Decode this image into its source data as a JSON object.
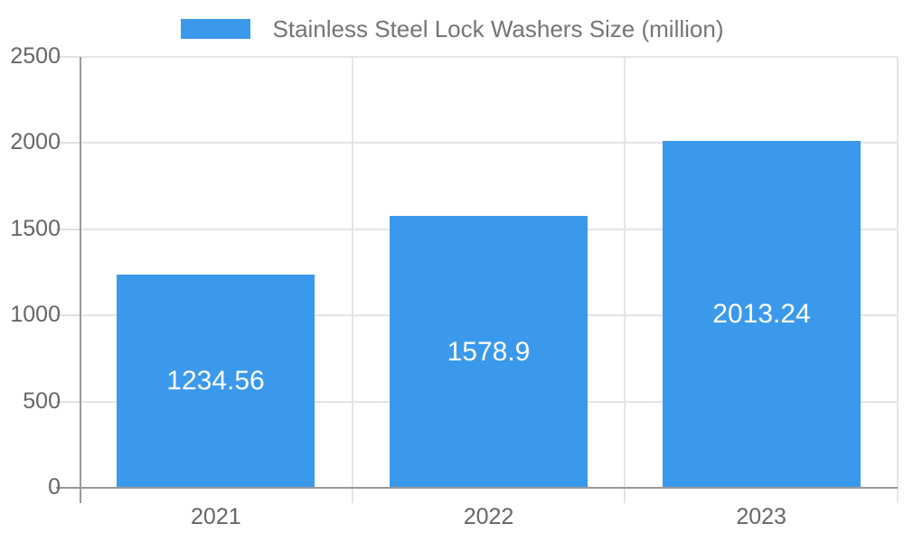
{
  "legend": {
    "label": "Stainless Steel Lock Washers Size (million)"
  },
  "colors": {
    "bar": "#3B99EC",
    "bar_label": "#ffffff",
    "axis_line": "#999999",
    "gridline": "#e5e5e5",
    "tick_label": "#666666",
    "legend_text": "#757575",
    "background": "#ffffff"
  },
  "chart_data": {
    "type": "bar",
    "title": "",
    "legend_position": "top",
    "grid": true,
    "categories": [
      "2021",
      "2022",
      "2023"
    ],
    "series": [
      {
        "name": "Stainless Steel Lock Washers Size (million)",
        "values": [
          1234.56,
          1578.9,
          2013.24
        ],
        "color": "#3B99EC"
      }
    ],
    "value_labels": [
      "1234.56",
      "1578.9",
      "2013.24"
    ],
    "xlabel": "",
    "ylabel": "",
    "ylim": [
      0,
      2500
    ],
    "yticks": [
      0,
      500,
      1000,
      1500,
      2000,
      2500
    ]
  }
}
